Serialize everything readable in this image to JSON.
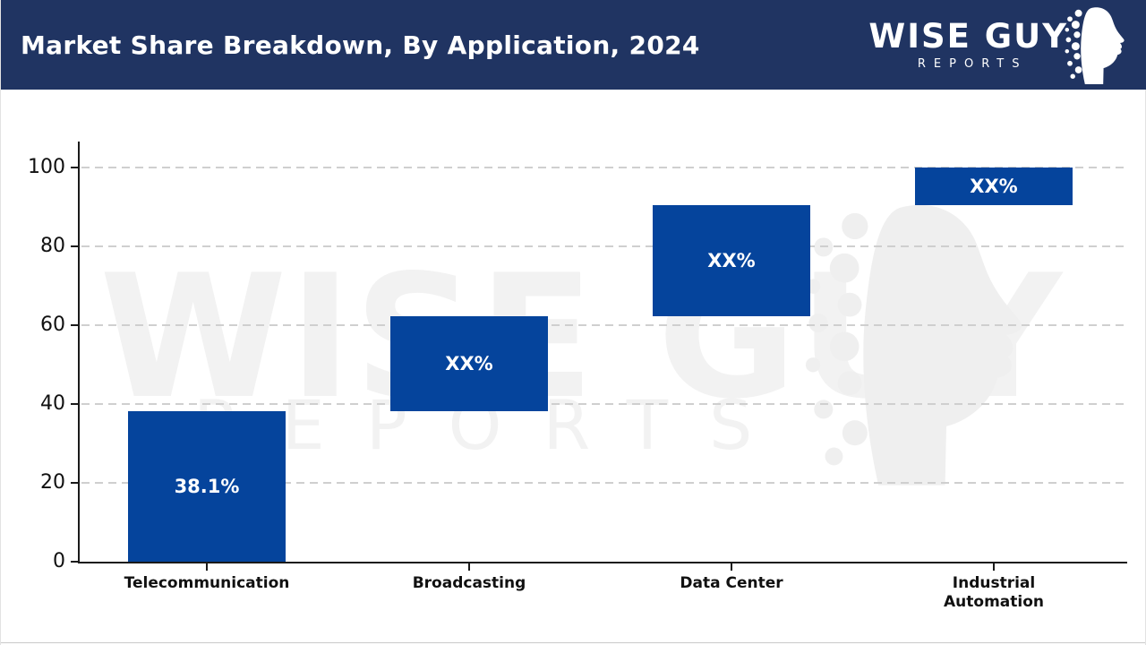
{
  "header": {
    "title": "Market Share Breakdown, By Application, 2024",
    "logo": {
      "line1": "WISE GUY",
      "line2": "REPORTS"
    }
  },
  "watermark": {
    "line1": "WISE GUY",
    "line2": "REPORTS"
  },
  "chart_data": {
    "type": "bar",
    "subtype": "waterfall",
    "title": "Market Share Breakdown, By Application, 2024",
    "categories": [
      "Telecommunication",
      "Broadcasting",
      "Data Center",
      "Industrial\nAutomation"
    ],
    "segments": [
      {
        "category": "Telecommunication",
        "start": 0,
        "end": 38.1,
        "label": "38.1%"
      },
      {
        "category": "Broadcasting",
        "start": 38.1,
        "end": 62.2,
        "label": "XX%"
      },
      {
        "category": "Data Center",
        "start": 62.2,
        "end": 90.5,
        "label": "XX%"
      },
      {
        "category": "Industrial\nAutomation",
        "start": 90.5,
        "end": 100,
        "label": "XX%"
      }
    ],
    "yticks": [
      0,
      20,
      40,
      60,
      80,
      100
    ],
    "ylim": [
      0,
      106
    ],
    "xlabel": "",
    "ylabel": "",
    "grid": "dashed-horizontal",
    "legend": "none",
    "bar_color": "#05449c",
    "bar_label_color": "#ffffff",
    "axis_color": "#1a1a1a"
  },
  "colors": {
    "header_bg": "#203462",
    "watermark": "#f2f2f2",
    "gridline": "#cfcfcf"
  }
}
